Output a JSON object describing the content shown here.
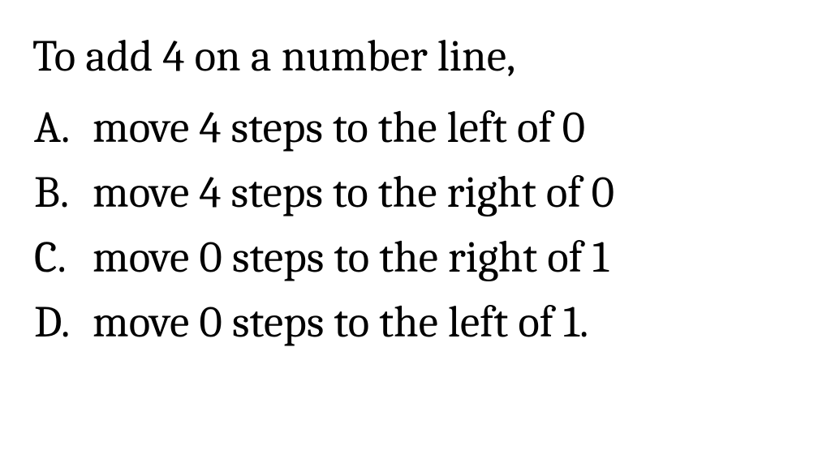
{
  "question": {
    "stem": "To add 4 on a number line,",
    "options": [
      {
        "letter": "A.",
        "text": "move 4 steps to the left of 0"
      },
      {
        "letter": "B.",
        "text": "move 4 steps to the right of 0"
      },
      {
        "letter": "C.",
        "text": "move 0 steps to the right of 1"
      },
      {
        "letter": "D.",
        "text": "move 0 steps to the left of 1."
      }
    ],
    "font_family": "Cambria, Georgia, 'Times New Roman', serif",
    "font_size_pt": 41,
    "text_color": "#000000",
    "background_color": "#ffffff"
  }
}
